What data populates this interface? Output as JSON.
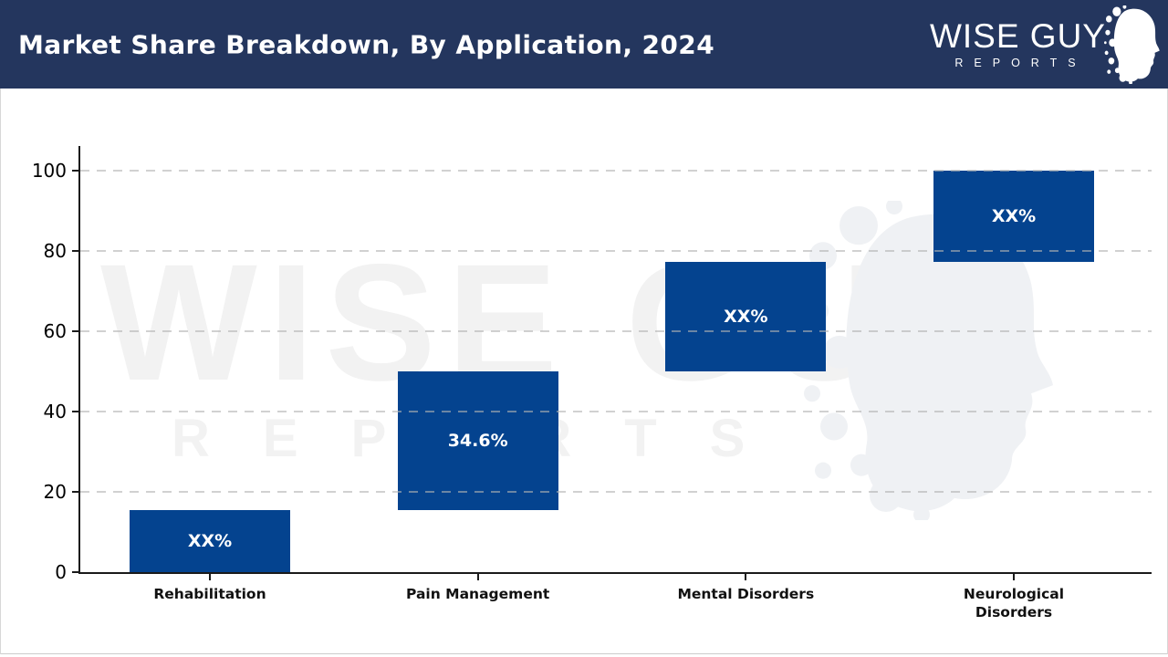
{
  "header": {
    "title": "Market Share Breakdown, By Application, 2024",
    "logo": {
      "line1": "WISE GUY",
      "line2": "REPORTS"
    }
  },
  "watermark": {
    "line1": "WISE GUY",
    "line2": "REPORTS"
  },
  "colors": {
    "header_bg": "#24365E",
    "bar": "#04438F",
    "grid": "#c8c8c8",
    "axis": "#1a1a1a",
    "title_text": "#ffffff",
    "bar_label": "#ffffff",
    "watermark": "#f2f2f2",
    "frame_border": "#cccccc"
  },
  "chart_data": {
    "type": "bar",
    "subtype": "waterfall-segments",
    "title": "Market Share Breakdown, By Application, 2024",
    "categories": [
      "Rehabilitation",
      "Pain Management",
      "Mental Disorders",
      "Neurological Disorders"
    ],
    "segments": [
      {
        "category": "Rehabilitation",
        "start": 0,
        "end": 15.4,
        "label": "XX%"
      },
      {
        "category": "Pain Management",
        "start": 15.4,
        "end": 50.0,
        "label": "34.6%"
      },
      {
        "category": "Mental Disorders",
        "start": 50.0,
        "end": 77.2,
        "label": "XX%"
      },
      {
        "category": "Neurological Disorders",
        "start": 77.2,
        "end": 100.0,
        "label": "XX%"
      }
    ],
    "ylim": [
      0,
      100
    ],
    "yticks": [
      0,
      20,
      40,
      60,
      80,
      100
    ],
    "ytick_labels": [
      "0",
      "20",
      "40",
      "60",
      "80",
      "100"
    ],
    "xlabel": "",
    "ylabel": "",
    "grid": "horizontal-dashed",
    "legend": false
  }
}
